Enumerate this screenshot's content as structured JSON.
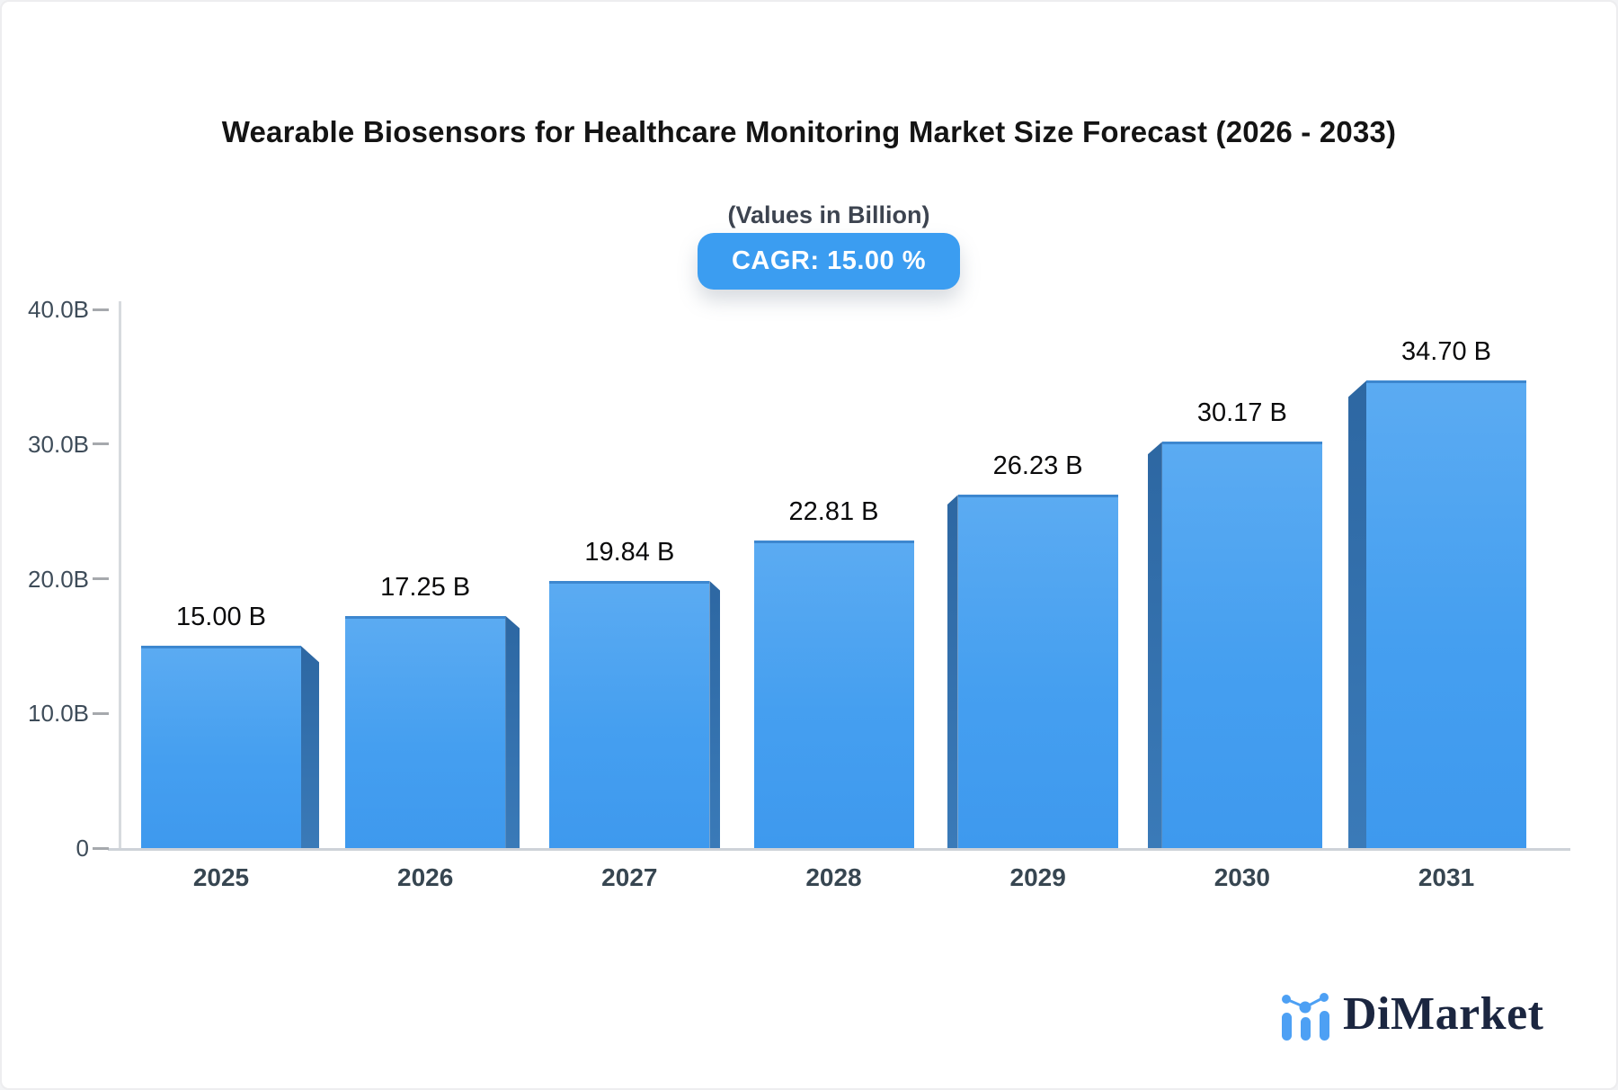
{
  "header": {
    "title": "Wearable Biosensors for Healthcare Monitoring Market Size Forecast (2026 - 2033)",
    "subtitle": "(Values in Billion)",
    "cagr_badge": "CAGR: 15.00 %"
  },
  "footer": {
    "brand_name": "DiMarket"
  },
  "colors": {
    "badge_bg": "#3b9df1",
    "bar_face_top": "#5babf2",
    "bar_face_bottom": "#3e99ee",
    "bar_top_edge": "#3d87cf",
    "bar_side": "#2f6dab",
    "axis_line": "#ced2d8",
    "ytick_label": "#3e4c59",
    "xtick_label": "#374651",
    "value_label": "#0b0b0c",
    "brand_navy": "#1b2640",
    "brand_blue": "#4da0f4"
  },
  "chart_data": {
    "type": "bar",
    "title": "Wearable Biosensors for Healthcare Monitoring Market Size Forecast (2026 - 2033)",
    "subtitle": "(Values in Billion)",
    "annotation": "CAGR: 15.00 %",
    "categories": [
      "2025",
      "2026",
      "2027",
      "2028",
      "2029",
      "2030",
      "2031"
    ],
    "values": [
      15.0,
      17.25,
      19.84,
      22.81,
      26.23,
      30.17,
      34.7
    ],
    "value_labels": [
      "15.00 B",
      "17.25 B",
      "19.84 B",
      "22.81 B",
      "26.23 B",
      "30.17 B",
      "34.70 B"
    ],
    "xlabel": "",
    "ylabel": "",
    "ylim": [
      0,
      40
    ],
    "yticks": [
      {
        "value": 40,
        "label": "40.0B"
      },
      {
        "value": 30,
        "label": "30.0B"
      },
      {
        "value": 20,
        "label": "20.0B"
      },
      {
        "value": 10,
        "label": "10.0B"
      },
      {
        "value": 0,
        "label": "0"
      }
    ],
    "grid": false,
    "legend": false,
    "style": "3d-perspective-bars"
  }
}
